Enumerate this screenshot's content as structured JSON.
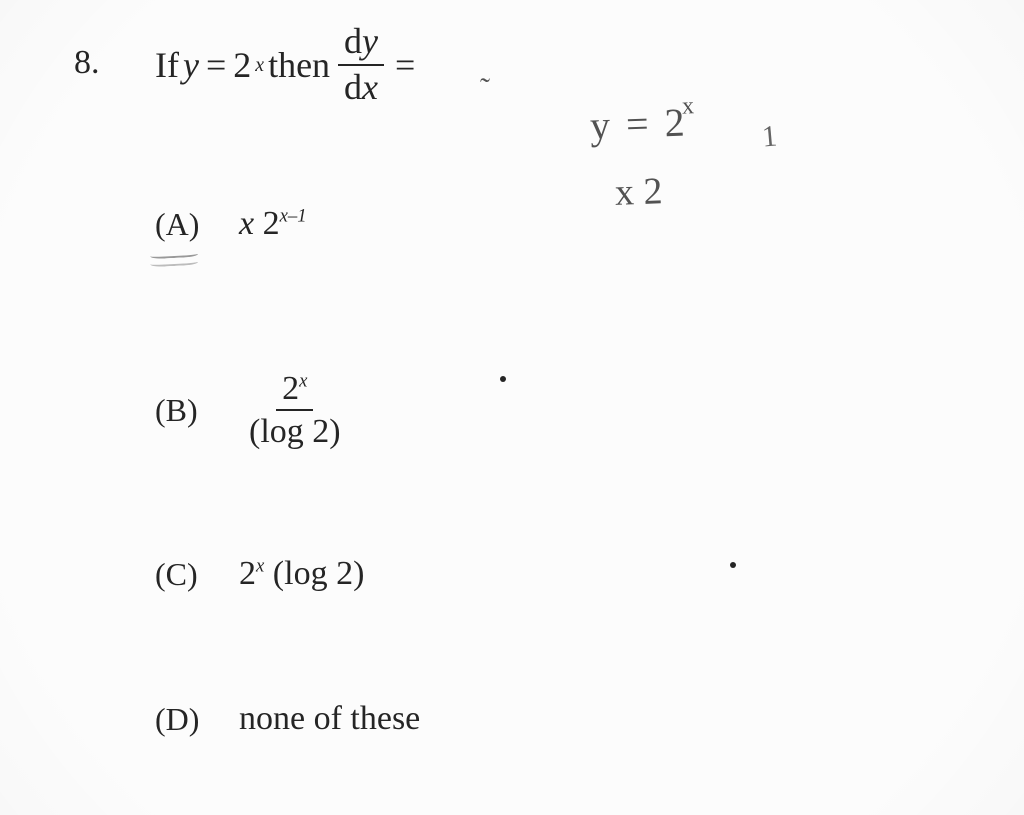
{
  "question": {
    "number": "8.",
    "stem_prefix": "If ",
    "stem_eq_lhs_var": "y",
    "stem_eq_eqsign": "=",
    "stem_eq_rhs_base": "2",
    "stem_eq_rhs_exp": "x",
    "stem_then": " then ",
    "frac_num_d": "d",
    "frac_num_y": "y",
    "frac_den_d": "d",
    "frac_den_x": "x",
    "stem_tail": "="
  },
  "options": {
    "A": {
      "label": "(A)",
      "pre": "x",
      "base": "2",
      "exp": "x–1"
    },
    "B": {
      "label": "(B)",
      "num_base": "2",
      "num_exp": "x",
      "den": "(log 2)"
    },
    "C": {
      "label": "(C)",
      "base": "2",
      "exp": "x",
      "tail": " (log 2)"
    },
    "D": {
      "label": "(D)",
      "text": "none of these"
    }
  },
  "handwriting": {
    "line1_y": "y",
    "line1_eq": "=",
    "line1_base": "2",
    "line1_exp": "x",
    "line2": "x 2",
    "trail": "1"
  },
  "style": {
    "text_color": "#2a2a2a",
    "hand_color": "#555",
    "bg": "#fdfdfd",
    "base_fontsize_pt": 26
  }
}
